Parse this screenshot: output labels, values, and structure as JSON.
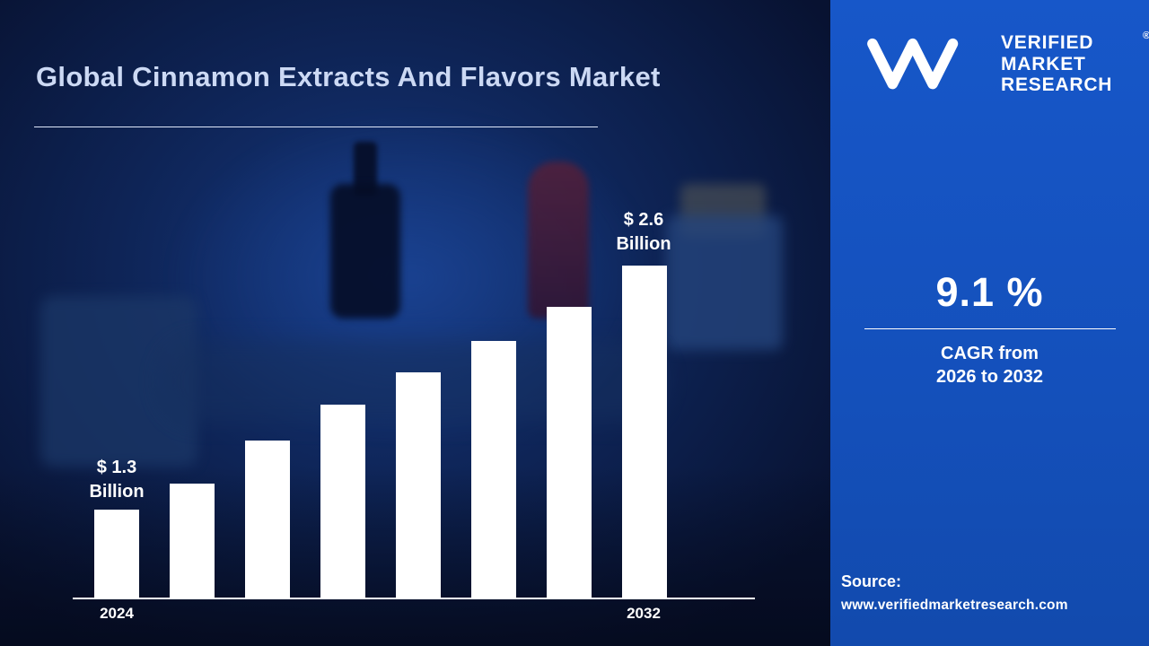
{
  "title": "Global Cinnamon Extracts And Flavors Market",
  "brand": {
    "lines": [
      "VERIFIED",
      "MARKET",
      "RESEARCH"
    ],
    "registered": "®"
  },
  "cagr": {
    "value": "9.1 %",
    "line1": "CAGR from",
    "line2": "2026 to 2032"
  },
  "source": {
    "label": "Source:",
    "url": "www.verifiedmarketresearch.com"
  },
  "labels": {
    "start_value": "$ 1.3",
    "start_unit": "Billion",
    "end_value": "$ 2.6",
    "end_unit": "Billion",
    "x_first": "2024",
    "x_last": "2032"
  },
  "chart_data": {
    "type": "bar",
    "title": "Global Cinnamon Extracts And Flavors Market",
    "unit": "USD Billion",
    "categories": [
      "2024",
      "",
      "",
      "",
      "",
      "",
      "",
      "2032"
    ],
    "values": [
      1.3,
      1.44,
      1.67,
      1.86,
      2.03,
      2.2,
      2.38,
      2.6
    ],
    "data_labels": {
      "first": "$ 1.3 Billion",
      "last": "$ 2.6 Billion"
    },
    "x_axis_labels_visible": [
      "2024",
      "2032"
    ],
    "ylim": [
      0,
      2.8
    ],
    "bar_color": "#ffffff",
    "grid": false,
    "legend": false,
    "annotations": {
      "cagr": "9.1 %",
      "cagr_period": "2026 to 2032"
    }
  },
  "colors": {
    "panel_blue": "#1450bb",
    "background_navy": "#0e2456",
    "bar_white": "#ffffff",
    "title_text": "#ccd9f4"
  }
}
